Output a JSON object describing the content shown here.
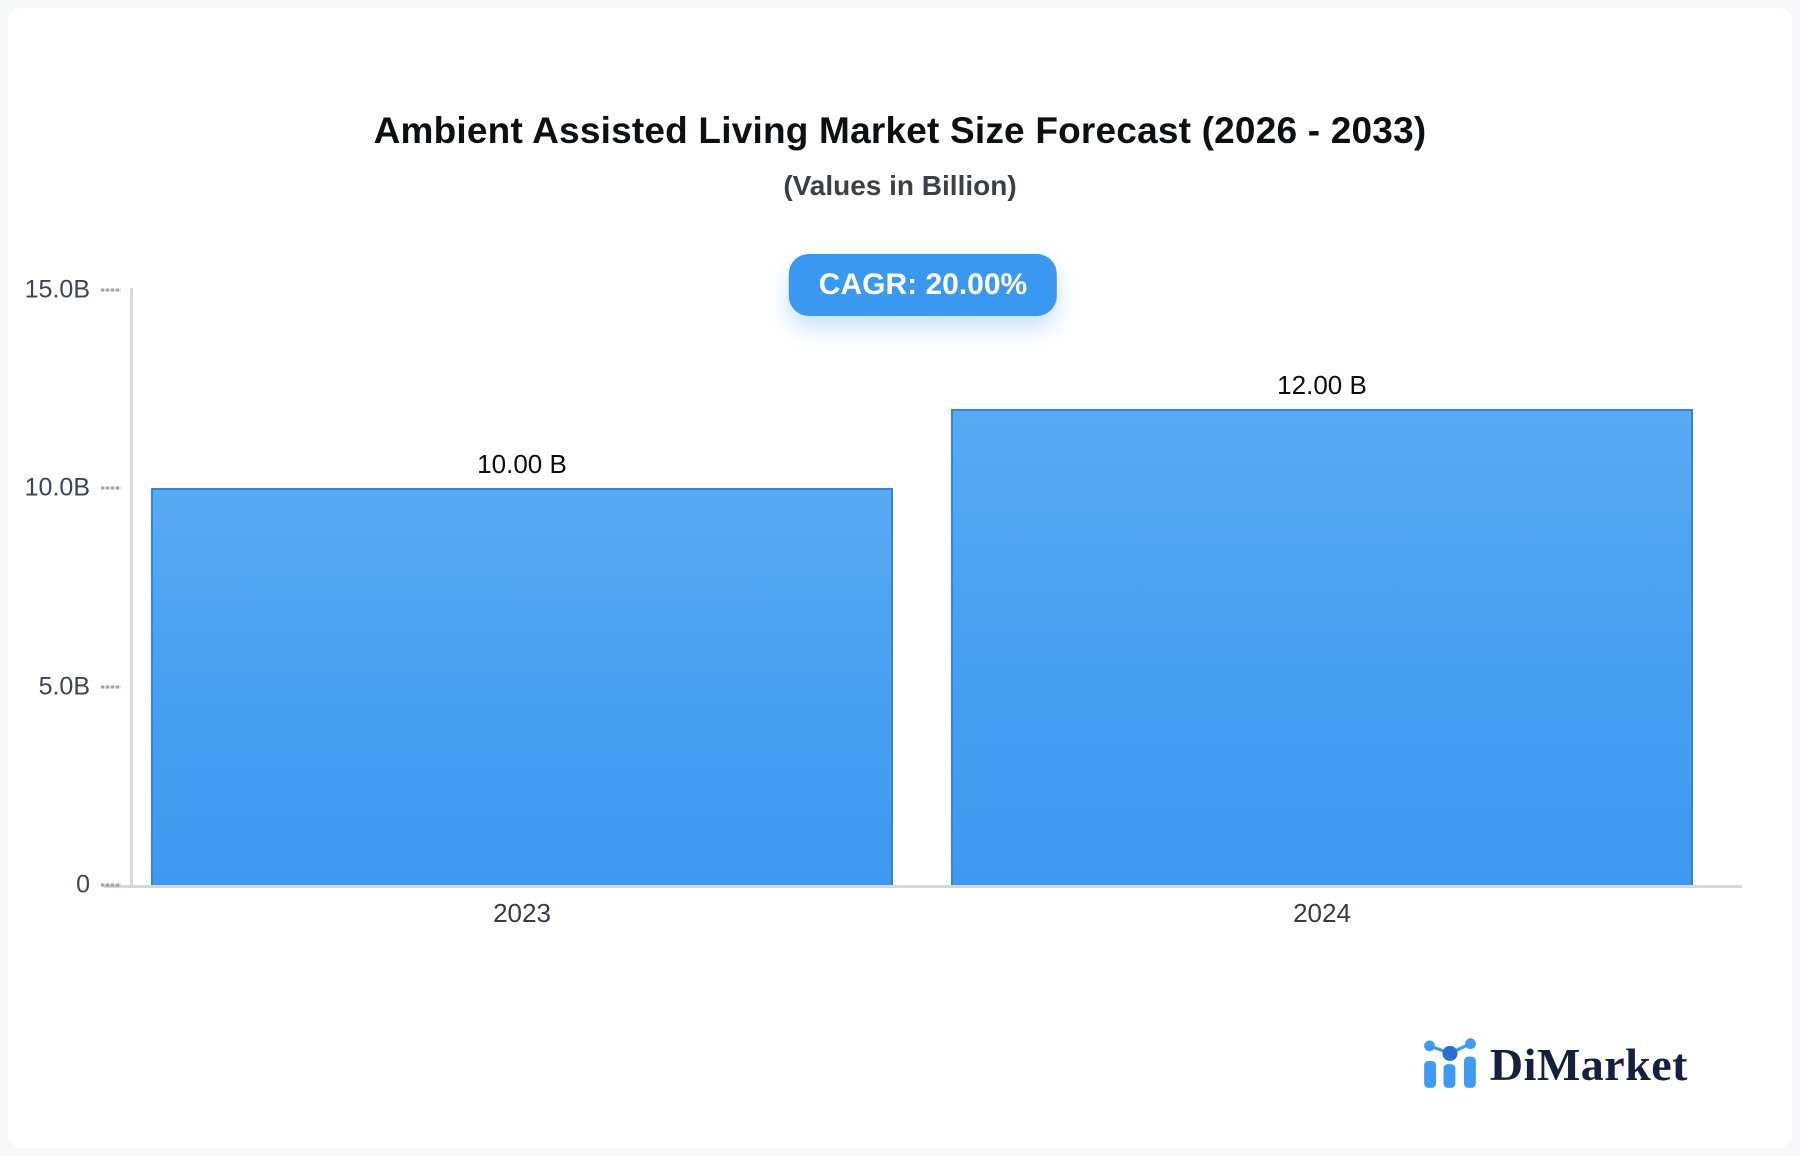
{
  "header": {
    "title": "Ambient Assisted Living Market Size Forecast (2026 - 2033)",
    "subtitle": "(Values in Billion)"
  },
  "badge": {
    "label": "CAGR: 20.00%",
    "color": "#3b98f0"
  },
  "chart_data": {
    "type": "bar",
    "categories": [
      "2023",
      "2024"
    ],
    "values": [
      10,
      12
    ],
    "value_labels": [
      "10.00 B",
      "12.00 B"
    ],
    "title": "Ambient Assisted Living Market Size Forecast (2026 - 2033)",
    "subtitle": "(Values in Billion)",
    "xlabel": "",
    "ylabel": "",
    "ylim": [
      0,
      15
    ],
    "yticks": [
      0,
      5,
      10,
      15
    ],
    "ytick_labels": [
      "0",
      "5.0B",
      "10.0B",
      "15.0B"
    ],
    "grid": false,
    "legend": false,
    "bar_color_top": "#58aaf2",
    "bar_color_bottom": "#3e9af0",
    "bar_border_color": "#2f86dd",
    "axis_color": "#d6dae0",
    "tick_label_color": "#3d4453"
  },
  "logo": {
    "text": "DiMarket",
    "icon": "bar-chart-logo-icon",
    "icon_color": "#3f9bf2",
    "icon_accent_color": "#2d6fd0",
    "text_color": "#15203e"
  }
}
